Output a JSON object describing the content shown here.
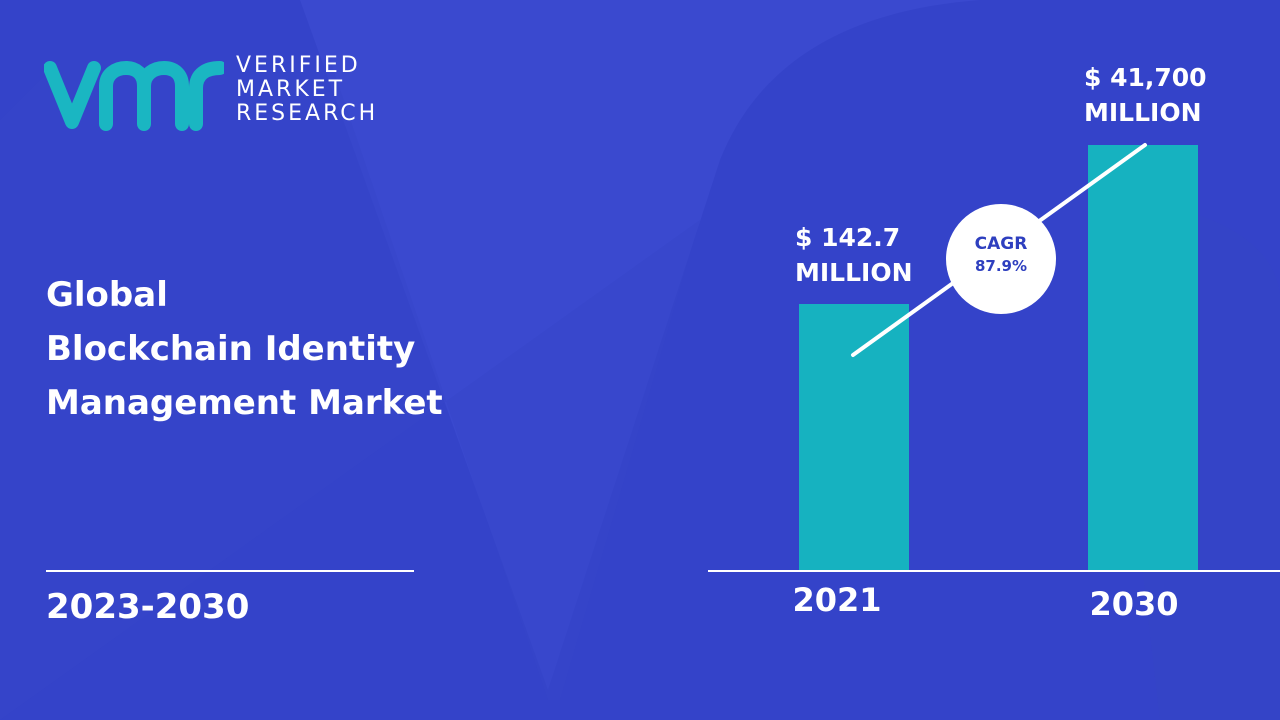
{
  "brand": {
    "name_lines": [
      "VERIFIED",
      "MARKET",
      "RESEARCH"
    ],
    "logo_mark": "vmr-logo-mark",
    "logo_color": "#1ab6c2"
  },
  "title_lines": [
    "Global",
    "Blockchain Identity",
    "Management Market"
  ],
  "period": "2023-2030",
  "colors": {
    "background": "#3a49cf",
    "background_shape": "#3140c4",
    "bar": "#16b2c0",
    "text": "#ffffff",
    "cagr_text": "#2e3fbf"
  },
  "cagr": {
    "label": "CAGR",
    "value": "87.9%"
  },
  "chart_data": {
    "type": "bar",
    "categories": [
      "2021",
      "2030"
    ],
    "values": [
      142.7,
      41700
    ],
    "value_labels": [
      [
        "$ 142.7",
        "MILLION"
      ],
      [
        "$ 41,700",
        "MILLION"
      ]
    ],
    "unit": "MILLION",
    "trend_line": true,
    "grid": false
  }
}
